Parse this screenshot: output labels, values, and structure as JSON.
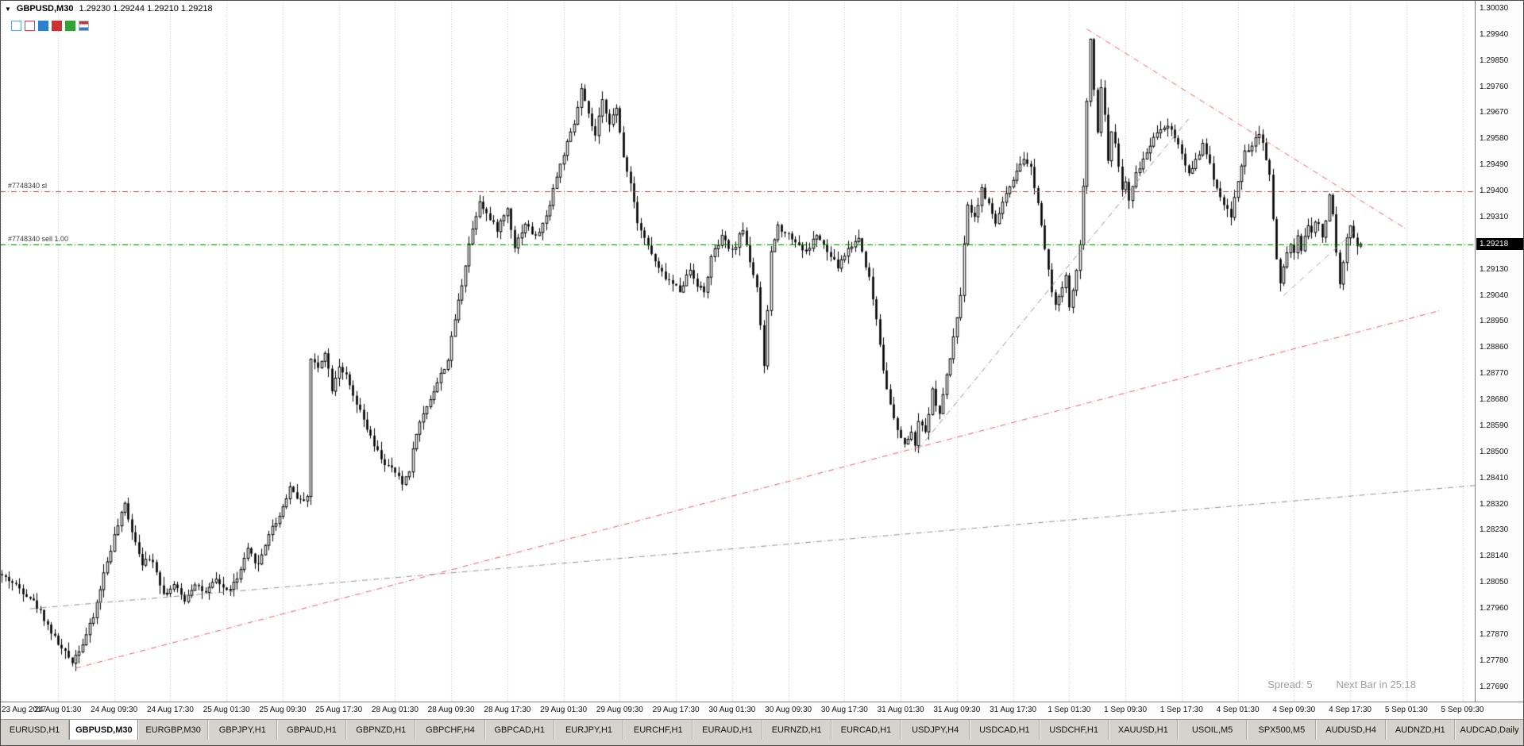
{
  "header": {
    "collapse_icon": "▼",
    "symbol_period": "GBPUSD,M30",
    "ohlc": "1.29230 1.29244 1.29210 1.29218"
  },
  "toolbar": {
    "swatches": [
      {
        "name": "swatch-white-blue-border",
        "fill": "#ffffff",
        "border": "#6a9fd8"
      },
      {
        "name": "swatch-white-red-border",
        "fill": "#ffffff",
        "border": "#d04040"
      },
      {
        "name": "swatch-blue",
        "fill": "#2e7fd0",
        "border": "#2e7fd0"
      },
      {
        "name": "swatch-red",
        "fill": "#d03030",
        "border": "#d03030"
      },
      {
        "name": "swatch-green",
        "fill": "#35a035",
        "border": "#35a035"
      },
      {
        "name": "swatch-striped",
        "fill": "#d03030|#ffffff|#2e7fd0",
        "border": "#b0b0b0"
      }
    ]
  },
  "price_axis": {
    "current": "1.29218"
  },
  "status": {
    "spread": "Spread: 5",
    "next_bar": "Next Bar in 25:18"
  },
  "tabs": {
    "active": "GBPUSD,M30",
    "items": [
      "EURUSD,H1",
      "GBPUSD,M30",
      "EURGBP,M30",
      "GBPJPY,H1",
      "GBPAUD,H1",
      "GBPNZD,H1",
      "GBPCHF,H4",
      "GBPCAD,H1",
      "EURJPY,H1",
      "EURCHF,H1",
      "EURAUD,H1",
      "EURNZD,H1",
      "EURCAD,H1",
      "USDJPY,H4",
      "USDCAD,H1",
      "USDCHF,H1",
      "XAUUSD,H1",
      "USOIL,M5",
      "SPX500,M5",
      "AUDUSD,H4",
      "AUDNZD,H1",
      "AUDCAD,Daily"
    ]
  },
  "chart_data": {
    "type": "candlestick",
    "symbol": "GBPUSD",
    "timeframe": "M30",
    "title": "GBPUSD,M30",
    "current_price": 1.29218,
    "y_range": {
      "min": 1.2764,
      "max": 1.3006
    },
    "price_ticks": [
      "1.30030",
      "1.29940",
      "1.29850",
      "1.29760",
      "1.29670",
      "1.29580",
      "1.29490",
      "1.29400",
      "1.29310",
      "1.29220",
      "1.29130",
      "1.29040",
      "1.28950",
      "1.28860",
      "1.28770",
      "1.28680",
      "1.28590",
      "1.28500",
      "1.28410",
      "1.28320",
      "1.28230",
      "1.28140",
      "1.28050",
      "1.27960",
      "1.27870",
      "1.27780",
      "1.27690"
    ],
    "time_labels": [
      "23 Aug 2017",
      "24 Aug 01:30",
      "24 Aug 09:30",
      "24 Aug 17:30",
      "25 Aug 01:30",
      "25 Aug 09:30",
      "25 Aug 17:30",
      "28 Aug 01:30",
      "28 Aug 09:30",
      "28 Aug 17:30",
      "29 Aug 01:30",
      "29 Aug 09:30",
      "29 Aug 17:30",
      "30 Aug 01:30",
      "30 Aug 09:30",
      "30 Aug 17:30",
      "31 Aug 01:30",
      "31 Aug 09:30",
      "31 Aug 17:30",
      "1 Sep 01:30",
      "1 Sep 09:30",
      "1 Sep 17:30",
      "4 Sep 01:30",
      "4 Sep 09:30",
      "4 Sep 17:30",
      "5 Sep 01:30",
      "5 Sep 09:30"
    ],
    "label_step": 16,
    "total_bars": 420,
    "last_bar": 387,
    "noise_seed": 42,
    "grid": "vertical-dotted",
    "anchors": [
      [
        0,
        1.2808
      ],
      [
        3,
        1.2806
      ],
      [
        6,
        1.2803
      ],
      [
        9,
        1.28
      ],
      [
        12,
        1.2795
      ],
      [
        15,
        1.2788
      ],
      [
        18,
        1.2782
      ],
      [
        21,
        1.2778
      ],
      [
        24,
        1.2784
      ],
      [
        27,
        1.2793
      ],
      [
        30,
        1.2808
      ],
      [
        33,
        1.2821
      ],
      [
        36,
        1.2832
      ],
      [
        38,
        1.2823
      ],
      [
        41,
        1.2812
      ],
      [
        44,
        1.2813
      ],
      [
        47,
        1.2801
      ],
      [
        50,
        1.2804
      ],
      [
        53,
        1.2799
      ],
      [
        56,
        1.2805
      ],
      [
        59,
        1.2801
      ],
      [
        62,
        1.2806
      ],
      [
        65,
        1.2802
      ],
      [
        68,
        1.2806
      ],
      [
        71,
        1.2816
      ],
      [
        74,
        1.2811
      ],
      [
        77,
        1.2822
      ],
      [
        80,
        1.2828
      ],
      [
        83,
        1.2838
      ],
      [
        86,
        1.2833
      ],
      [
        88,
        1.2835
      ],
      [
        89,
        1.2882
      ],
      [
        91,
        1.2879
      ],
      [
        93,
        1.2885
      ],
      [
        95,
        1.2872
      ],
      [
        97,
        1.288
      ],
      [
        99,
        1.2876
      ],
      [
        101,
        1.2869
      ],
      [
        104,
        1.2861
      ],
      [
        107,
        1.2852
      ],
      [
        110,
        1.2846
      ],
      [
        113,
        1.2843
      ],
      [
        115,
        1.2839
      ],
      [
        117,
        1.2844
      ],
      [
        119,
        1.2857
      ],
      [
        122,
        1.2866
      ],
      [
        125,
        1.2874
      ],
      [
        128,
        1.2882
      ],
      [
        130,
        1.2896
      ],
      [
        132,
        1.2908
      ],
      [
        134,
        1.2922
      ],
      [
        137,
        1.2937
      ],
      [
        140,
        1.293
      ],
      [
        142,
        1.2927
      ],
      [
        145,
        1.2934
      ],
      [
        147,
        1.2921
      ],
      [
        150,
        1.2929
      ],
      [
        153,
        1.2924
      ],
      [
        156,
        1.2931
      ],
      [
        158,
        1.2941
      ],
      [
        161,
        1.2953
      ],
      [
        164,
        1.2963
      ],
      [
        166,
        1.2975
      ],
      [
        168,
        1.2966
      ],
      [
        170,
        1.2959
      ],
      [
        172,
        1.2971
      ],
      [
        174,
        1.2964
      ],
      [
        176,
        1.2968
      ],
      [
        178,
        1.2952
      ],
      [
        180,
        1.2943
      ],
      [
        182,
        1.293
      ],
      [
        185,
        1.2921
      ],
      [
        188,
        1.2913
      ],
      [
        191,
        1.2909
      ],
      [
        194,
        1.2906
      ],
      [
        197,
        1.2913
      ],
      [
        199,
        1.2908
      ],
      [
        201,
        1.2905
      ],
      [
        203,
        1.2917
      ],
      [
        206,
        1.2924
      ],
      [
        209,
        1.2919
      ],
      [
        212,
        1.2927
      ],
      [
        214,
        1.2916
      ],
      [
        216,
        1.2907
      ],
      [
        218,
        1.2879
      ],
      [
        220,
        1.2919
      ],
      [
        222,
        1.2928
      ],
      [
        226,
        1.2924
      ],
      [
        230,
        1.2919
      ],
      [
        233,
        1.2925
      ],
      [
        236,
        1.2919
      ],
      [
        239,
        1.2914
      ],
      [
        242,
        1.292
      ],
      [
        245,
        1.2924
      ],
      [
        248,
        1.291
      ],
      [
        250,
        1.2896
      ],
      [
        252,
        1.2879
      ],
      [
        254,
        1.2866
      ],
      [
        256,
        1.2857
      ],
      [
        258,
        1.2853
      ],
      [
        260,
        1.2856
      ],
      [
        261,
        1.2853
      ],
      [
        262,
        1.286
      ],
      [
        264,
        1.2857
      ],
      [
        266,
        1.2871
      ],
      [
        268,
        1.2863
      ],
      [
        270,
        1.2876
      ],
      [
        272,
        1.2889
      ],
      [
        274,
        1.2905
      ],
      [
        275,
        1.2921
      ],
      [
        276,
        1.2936
      ],
      [
        278,
        1.2931
      ],
      [
        280,
        1.2941
      ],
      [
        282,
        1.2935
      ],
      [
        284,
        1.2929
      ],
      [
        286,
        1.2936
      ],
      [
        288,
        1.2941
      ],
      [
        290,
        1.2946
      ],
      [
        292,
        1.2951
      ],
      [
        294,
        1.2948
      ],
      [
        296,
        1.2936
      ],
      [
        298,
        1.2921
      ],
      [
        300,
        1.2906
      ],
      [
        301,
        1.2901
      ],
      [
        303,
        1.2906
      ],
      [
        304,
        1.2911
      ],
      [
        305,
        1.2899
      ],
      [
        306,
        1.2906
      ],
      [
        307,
        1.2913
      ],
      [
        308,
        1.2921
      ],
      [
        309,
        1.2941
      ],
      [
        310,
        1.2971
      ],
      [
        311,
        1.2993
      ],
      [
        312,
        1.2976
      ],
      [
        313,
        1.2961
      ],
      [
        314,
        1.2976
      ],
      [
        315,
        1.2966
      ],
      [
        316,
        1.2951
      ],
      [
        317,
        1.2961
      ],
      [
        318,
        1.2956
      ],
      [
        319,
        1.2949
      ],
      [
        320,
        1.2941
      ],
      [
        321,
        1.2943
      ],
      [
        322,
        1.2936
      ],
      [
        324,
        1.2946
      ],
      [
        326,
        1.2951
      ],
      [
        328,
        1.2956
      ],
      [
        330,
        1.2961
      ],
      [
        333,
        1.2963
      ],
      [
        335,
        1.2959
      ],
      [
        337,
        1.2953
      ],
      [
        339,
        1.2946
      ],
      [
        341,
        1.2951
      ],
      [
        343,
        1.2956
      ],
      [
        345,
        1.2949
      ],
      [
        347,
        1.2941
      ],
      [
        349,
        1.2936
      ],
      [
        351,
        1.2931
      ],
      [
        353,
        1.2944
      ],
      [
        355,
        1.2953
      ],
      [
        357,
        1.2956
      ],
      [
        359,
        1.2959
      ],
      [
        360,
        1.2956
      ],
      [
        361,
        1.2951
      ],
      [
        362,
        1.2946
      ],
      [
        363,
        1.2931
      ],
      [
        364,
        1.2916
      ],
      [
        365,
        1.2909
      ],
      [
        366,
        1.2913
      ],
      [
        367,
        1.2918
      ],
      [
        368,
        1.2922
      ],
      [
        369,
        1.2918
      ],
      [
        370,
        1.2924
      ],
      [
        371,
        1.292
      ],
      [
        372,
        1.2925
      ],
      [
        373,
        1.2928
      ],
      [
        374,
        1.2925
      ],
      [
        375,
        1.293
      ],
      [
        376,
        1.2928
      ],
      [
        377,
        1.2925
      ],
      [
        378,
        1.293
      ],
      [
        379,
        1.2938
      ],
      [
        380,
        1.2933
      ],
      [
        381,
        1.2918
      ],
      [
        382,
        1.2908
      ],
      [
        383,
        1.2916
      ],
      [
        384,
        1.2924
      ],
      [
        385,
        1.2928
      ],
      [
        386,
        1.2924
      ],
      [
        387,
        1.29218
      ]
    ],
    "order_lines": [
      {
        "label": "#7748340 sl",
        "price": 1.294,
        "color": "#e03030",
        "dash": "dashdot"
      },
      {
        "label": "#7748340 sell 1.00",
        "price": 1.29218,
        "color": "#007f00",
        "dash": "dashdot"
      }
    ],
    "trendlines": [
      {
        "name": "ascending-support-red",
        "p1": [
          21,
          1.27755
        ],
        "p2": [
          410,
          1.2899
        ],
        "color": "#e86060",
        "dash": "dashdot"
      },
      {
        "name": "descending-resistance-red",
        "p1": [
          309,
          1.2996
        ],
        "p2": [
          400,
          1.2927
        ],
        "color": "#e86060",
        "dash": "dashdot"
      },
      {
        "name": "long-gray-trendline",
        "p1": [
          8,
          1.2796
        ],
        "p2": [
          424,
          1.2839
        ],
        "color": "#909090",
        "dash": "dashdot"
      },
      {
        "name": "steep-gray-trendline",
        "p1": [
          261,
          1.2851
        ],
        "p2": [
          338,
          1.2965
        ],
        "color": "#909090",
        "dash": "dashdot"
      },
      {
        "name": "short-gray-support",
        "p1": [
          365,
          1.2904
        ],
        "p2": [
          386,
          1.2927
        ],
        "color": "#a8a8a8",
        "dash": "dashdot"
      }
    ],
    "colors": {
      "bull": "#ffffff",
      "bear": "#000000",
      "outline": "#000000",
      "grid": "#c6c6c6",
      "background": "#ffffff",
      "badge_bg": "#000000",
      "badge_text": "#ffffff"
    }
  }
}
